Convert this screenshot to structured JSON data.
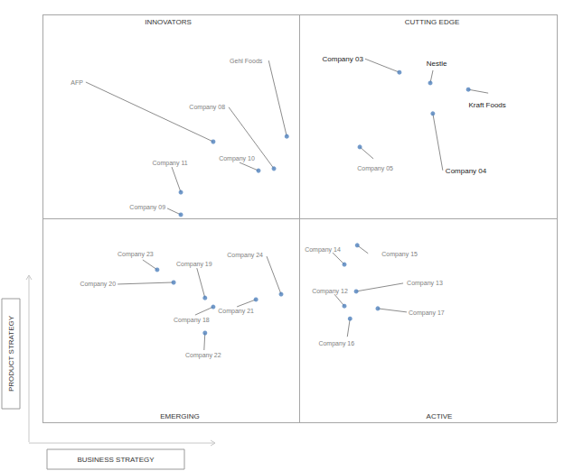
{
  "chart_data": {
    "type": "scatter",
    "x_label": "BUSINESS STRATEGY",
    "y_label": "PRODUCT STRATEGY",
    "quadrants": {
      "top_left": "INNOVATORS",
      "top_right": "CUTTING EDGE",
      "bottom_left": "EMERGING",
      "bottom_right": "ACTIVE"
    },
    "labels": [
      "Company 03",
      "Nestle",
      "Kraft Foods",
      "Company 04",
      "Company 05",
      "Gehl Foods",
      "AFP",
      "Company 08",
      "Company 10",
      "Company 11",
      "Company 09",
      "Company 23",
      "Company 20",
      "Company 19",
      "Company 18",
      "Company 21",
      "Company 24",
      "Company 22",
      "Company 14",
      "Company 15",
      "Company 12",
      "Company 13",
      "Company 17",
      "Company 16"
    ],
    "x": [
      69.4,
      75.4,
      82.8,
      75.9,
      61.7,
      47.5,
      33.2,
      45.0,
      42.0,
      26.9,
      26.9,
      22.3,
      25.5,
      31.6,
      33.2,
      41.5,
      46.4,
      31.6,
      58.7,
      61.2,
      58.7,
      61.0,
      65.2,
      59.8
    ],
    "values": [
      85.8,
      83.2,
      81.6,
      75.7,
      67.5,
      70.1,
      68.8,
      62.2,
      61.7,
      56.4,
      50.9,
      37.4,
      34.3,
      30.5,
      28.3,
      30.1,
      31.4,
      21.9,
      38.7,
      43.4,
      28.5,
      32.1,
      27.9,
      25.4
    ],
    "color": "#4f81bd",
    "xlim": [
      0,
      100
    ],
    "ylim": [
      0,
      100
    ],
    "xticks": [
      0,
      50,
      100
    ],
    "yticks": [
      0,
      50,
      100
    ],
    "grid": true,
    "tick_labels": false
  }
}
